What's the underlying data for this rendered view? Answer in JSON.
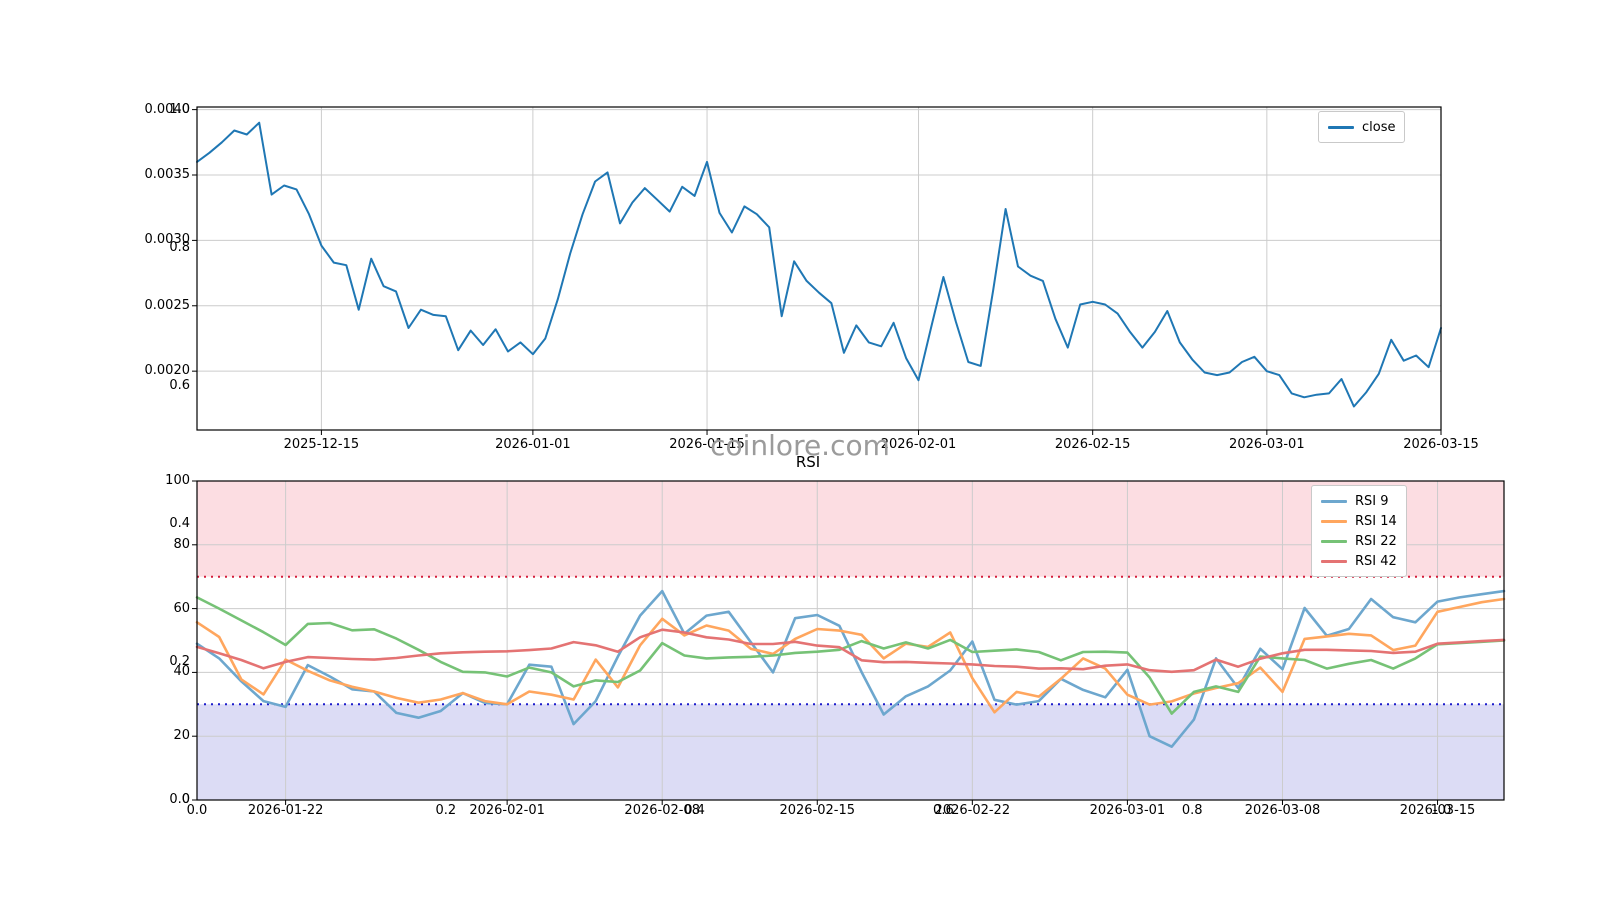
{
  "watermark": "coinlore.com",
  "colors": {
    "close_line": "#1f77b4",
    "rsi9_line": "#6da7ce",
    "rsi14_line": "#ffa65e",
    "rsi22_line": "#76c276",
    "rsi42_line": "#e47373",
    "overbought_band": "#fcdde2",
    "oversold_band": "#dcdcf5",
    "overbought_dotted_line": "#d41e3c",
    "oversold_dotted_line": "#1c1ccc",
    "grid": "#cccccc",
    "watermark_text": "#9b9b9b"
  },
  "hidden_axis": {
    "xticks": [
      "0.0",
      "0.2",
      "0.4",
      "0.6",
      "0.8",
      "1.0"
    ],
    "yticks": [
      "0.0",
      "0.2",
      "0.4",
      "0.6",
      "0.8",
      "1.0"
    ]
  },
  "chart_data": [
    {
      "type": "line",
      "title": "",
      "x_start": "2025-12-05",
      "x_interval": "1 day",
      "x_end": "2026-03-15",
      "xticks": [
        "2025-12-15",
        "2026-01-01",
        "2026-01-15",
        "2026-02-01",
        "2026-02-15",
        "2026-03-01",
        "2026-03-15"
      ],
      "xtick_day_offsets": [
        10,
        27,
        41,
        58,
        72,
        86,
        100
      ],
      "yticks": [
        "0.0020",
        "0.0025",
        "0.0030",
        "0.0035",
        "0.0040"
      ],
      "ylim": [
        0.00155,
        0.00402
      ],
      "grid": true,
      "legend_position": "upper right",
      "series": [
        {
          "name": "close",
          "color": "#1f77b4",
          "values": [
            0.0036,
            0.00367,
            0.00375,
            0.00384,
            0.00381,
            0.0039,
            0.00335,
            0.00342,
            0.00339,
            0.0032,
            0.00296,
            0.00283,
            0.00281,
            0.00247,
            0.00286,
            0.00265,
            0.00261,
            0.00233,
            0.00247,
            0.00243,
            0.00242,
            0.00216,
            0.00231,
            0.0022,
            0.00232,
            0.00215,
            0.00222,
            0.00213,
            0.00225,
            0.00255,
            0.0029,
            0.0032,
            0.00345,
            0.00352,
            0.00313,
            0.00329,
            0.0034,
            0.00331,
            0.00322,
            0.00341,
            0.00334,
            0.0036,
            0.00321,
            0.00306,
            0.00326,
            0.0032,
            0.0031,
            0.00242,
            0.00284,
            0.00269,
            0.0026,
            0.00252,
            0.00214,
            0.00235,
            0.00222,
            0.00219,
            0.00237,
            0.0021,
            0.00193,
            0.00233,
            0.00272,
            0.00238,
            0.00207,
            0.00204,
            0.00262,
            0.00324,
            0.0028,
            0.00273,
            0.00269,
            0.0024,
            0.00218,
            0.00251,
            0.00253,
            0.00251,
            0.00244,
            0.0023,
            0.00218,
            0.0023,
            0.00246,
            0.00222,
            0.00209,
            0.00199,
            0.00197,
            0.00199,
            0.00207,
            0.00211,
            0.002,
            0.00197,
            0.00183,
            0.0018,
            0.00182,
            0.00183,
            0.00194,
            0.00173,
            0.00184,
            0.00198,
            0.00224,
            0.00208,
            0.00212,
            0.00203,
            0.00233
          ]
        }
      ]
    },
    {
      "type": "line",
      "title": "RSI",
      "x_start": "2026-01-18",
      "x_interval": "1 day",
      "x_end": "2026-03-18",
      "xticks": [
        "2026-01-22",
        "2026-02-01",
        "2026-02-08",
        "2026-02-15",
        "2026-02-22",
        "2026-03-01",
        "2026-03-08",
        "2026-03-15"
      ],
      "xtick_day_offsets": [
        4,
        14,
        21,
        28,
        35,
        42,
        49,
        56
      ],
      "yticks": [
        "0",
        "20",
        "40",
        "60",
        "80",
        "100"
      ],
      "ylim": [
        0,
        100
      ],
      "grid": true,
      "overbought_level": 70,
      "oversold_level": 30,
      "overbought_band": [
        70,
        100
      ],
      "oversold_band": [
        0,
        30
      ],
      "legend_position": "upper right",
      "series": [
        {
          "name": "RSI 9",
          "color": "#6da7ce",
          "values": [
            49.0,
            44.4,
            37.2,
            31.0,
            29.2,
            42.3,
            38.7,
            34.7,
            34.0,
            27.3,
            25.8,
            27.9,
            33.5,
            30.4,
            30.0,
            42.4,
            41.8,
            23.8,
            31.0,
            45.0,
            57.8,
            65.5,
            52.1,
            57.8,
            59.0,
            49.5,
            40.0,
            57.0,
            58.0,
            54.6,
            40.1,
            26.8,
            32.5,
            35.6,
            40.6,
            49.7,
            31.4,
            29.9,
            31.0,
            38.0,
            34.5,
            32.2,
            40.8,
            20.0,
            16.7,
            25.2,
            44.4,
            35.1,
            47.4,
            41.0,
            60.2,
            51.5,
            53.6,
            63.0,
            57.3,
            55.7,
            62.2,
            63.5,
            64.5,
            65.5
          ]
        },
        {
          "name": "RSI 14",
          "color": "#ffa65e",
          "values": [
            55.7,
            51.1,
            37.8,
            33.1,
            44.0,
            40.5,
            37.5,
            35.5,
            34.0,
            32.0,
            30.5,
            31.5,
            33.5,
            31.0,
            30.0,
            34.0,
            33.0,
            31.5,
            44.0,
            35.3,
            48.5,
            56.8,
            51.6,
            54.7,
            53.1,
            47.4,
            45.8,
            50.5,
            53.6,
            53.1,
            51.8,
            44.4,
            49.0,
            48.0,
            52.5,
            38.2,
            27.5,
            33.9,
            32.4,
            38.0,
            44.4,
            41.2,
            33.0,
            29.9,
            30.9,
            33.4,
            35.1,
            36.6,
            41.5,
            33.9,
            50.5,
            51.3,
            52.1,
            51.6,
            47.0,
            48.4,
            59.0,
            60.5,
            62.0,
            63.0
          ]
        },
        {
          "name": "RSI 22",
          "color": "#76c276",
          "values": [
            63.5,
            60.0,
            56.3,
            52.6,
            48.6,
            55.2,
            55.5,
            53.2,
            53.5,
            50.6,
            47.1,
            43.3,
            40.2,
            40.0,
            38.7,
            41.5,
            40.0,
            35.6,
            37.5,
            37.0,
            40.6,
            49.2,
            45.3,
            44.4,
            44.7,
            44.9,
            45.3,
            46.1,
            46.5,
            47.1,
            49.8,
            47.5,
            49.4,
            47.5,
            50.2,
            46.4,
            46.8,
            47.2,
            46.4,
            43.8,
            46.4,
            46.5,
            46.2,
            38.4,
            27.1,
            33.9,
            35.6,
            33.9,
            45.0,
            44.4,
            43.9,
            41.2,
            42.7,
            43.9,
            41.2,
            44.4,
            48.8,
            49.2,
            49.6,
            50.0
          ]
        },
        {
          "name": "RSI 42",
          "color": "#e47373",
          "values": [
            48.0,
            46.0,
            43.9,
            41.3,
            43.3,
            44.8,
            44.5,
            44.2,
            44.0,
            44.5,
            45.3,
            46.0,
            46.3,
            46.5,
            46.6,
            47.0,
            47.5,
            49.5,
            48.5,
            46.5,
            51.0,
            53.4,
            52.5,
            51.0,
            50.3,
            48.9,
            48.9,
            49.6,
            48.4,
            47.9,
            43.8,
            43.2,
            43.3,
            43.0,
            42.8,
            42.5,
            42.0,
            41.8,
            41.2,
            41.3,
            41.0,
            42.1,
            42.5,
            40.7,
            40.2,
            40.7,
            44.0,
            41.8,
            44.3,
            46.0,
            47.1,
            47.1,
            46.9,
            46.7,
            46.1,
            46.5,
            49.0,
            49.4,
            49.8,
            50.2
          ]
        }
      ]
    }
  ]
}
